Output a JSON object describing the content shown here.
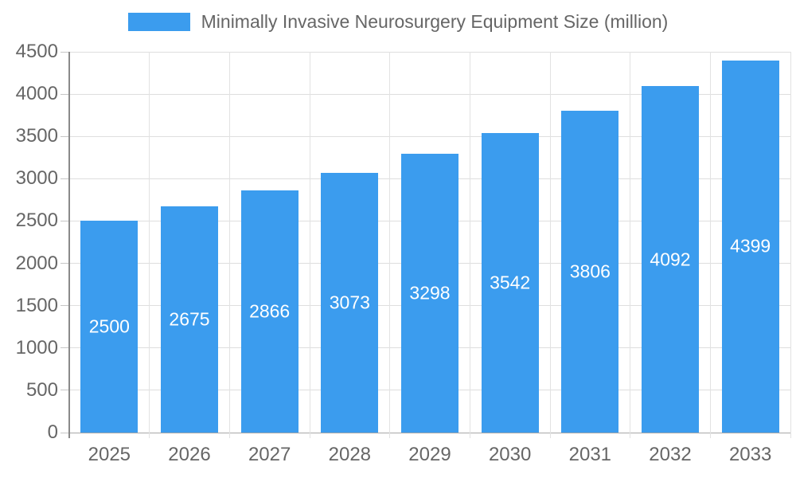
{
  "chart_data": {
    "type": "bar",
    "title": "Minimally Invasive Neurosurgery Equipment Size (million)",
    "categories": [
      "2025",
      "2026",
      "2027",
      "2028",
      "2029",
      "2030",
      "2031",
      "2032",
      "2033"
    ],
    "series": [
      {
        "name": "Minimally Invasive Neurosurgery Equipment Size (million)",
        "values": [
          2500,
          2675,
          2866,
          3073,
          3298,
          3542,
          3806,
          4092,
          4399
        ]
      }
    ],
    "xlabel": "",
    "ylabel": "",
    "ylim": [
      0,
      4500
    ],
    "ytick_step": 500,
    "yticks": [
      0,
      500,
      1000,
      1500,
      2000,
      2500,
      3000,
      3500,
      4000,
      4500
    ],
    "grid": true,
    "legend_position": "top",
    "bar_labels_visible": true,
    "colors": {
      "bar": "#3b9cee",
      "bar_label_text": "#ffffff",
      "axis_text": "#666666",
      "gridline": "#dedede",
      "axis_line": "#8a8a8a",
      "background": "#ffffff"
    }
  },
  "legend": {
    "label": "Minimally Invasive Neurosurgery Equipment Size (million)"
  }
}
